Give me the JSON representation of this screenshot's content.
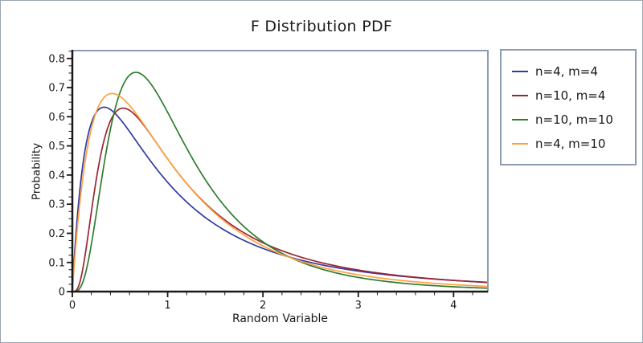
{
  "title": "F Distribution PDF",
  "axes": {
    "x": {
      "label": "Random Variable",
      "min": 0,
      "max": 4.36,
      "major_ticks": [
        0,
        1,
        2,
        3,
        4
      ],
      "tick_labels": [
        "0",
        "1",
        "2",
        "3",
        "4"
      ],
      "minor_step": 0.2
    },
    "y": {
      "label": "Probability",
      "min": 0,
      "max": 0.827,
      "major_ticks": [
        0,
        0.1,
        0.2,
        0.3,
        0.4,
        0.5,
        0.6,
        0.7,
        0.8
      ],
      "tick_labels": [
        "0",
        "0.1",
        "0.2",
        "0.3",
        "0.4",
        "0.5",
        "0.6",
        "0.7",
        "0.8"
      ],
      "minor_step": 0.025
    }
  },
  "legend": {
    "items": [
      {
        "label": "n=4, m=4",
        "color": "#3239A2"
      },
      {
        "label": "n=10, m=4",
        "color": "#9A2533"
      },
      {
        "label": "n=10, m=10",
        "color": "#2E7D2E"
      },
      {
        "label": "n=4, m=10",
        "color": "#FFA23F"
      }
    ]
  },
  "chart_data": {
    "type": "line",
    "title": "F Distribution PDF",
    "xlabel": "Random Variable",
    "ylabel": "Probability",
    "xlim": [
      0,
      4.36
    ],
    "ylim": [
      0,
      0.827
    ],
    "grid": false,
    "legend_position": "outside-right",
    "x_minor_tick_step": 0.2,
    "y_minor_tick_step": 0.025,
    "sample_x": [
      0.1,
      0.2,
      0.33,
      0.5,
      0.67,
      1.0,
      1.5,
      2.0,
      2.5,
      3.0,
      3.5,
      4.0,
      4.36
    ],
    "series": [
      {
        "name": "n=4, m=4",
        "distribution": "F",
        "df1": 4,
        "df2": 4,
        "color": "#3239A2",
        "peak_x": 0.33,
        "peak_y": 0.633,
        "values": [
          0.41,
          0.579,
          0.633,
          0.593,
          0.518,
          0.375,
          0.23,
          0.148,
          0.1,
          0.07,
          0.051,
          0.038,
          0.032
        ]
      },
      {
        "name": "n=10, m=4",
        "distribution": "F",
        "df1": 10,
        "df2": 4,
        "color": "#9A2533",
        "peak_x": 0.53,
        "peak_y": 0.627,
        "values": [
          0.061,
          0.274,
          0.519,
          0.627,
          0.604,
          0.455,
          0.272,
          0.167,
          0.108,
          0.074,
          0.052,
          0.038,
          0.031
        ]
      },
      {
        "name": "n=10, m=10",
        "distribution": "F",
        "df1": 10,
        "df2": 10,
        "color": "#2E7D2E",
        "peak_x": 0.67,
        "peak_y": 0.752,
        "values": [
          0.024,
          0.163,
          0.438,
          0.683,
          0.752,
          0.615,
          0.334,
          0.171,
          0.089,
          0.049,
          0.028,
          0.017,
          0.012
        ]
      },
      {
        "name": "n=4, m=10",
        "distribution": "F",
        "df1": 4,
        "df2": 10,
        "color": "#FFA23F",
        "peak_x": 0.42,
        "peak_y": 0.678,
        "values": [
          0.364,
          0.559,
          0.665,
          0.67,
          0.61,
          0.455,
          0.268,
          0.157,
          0.094,
          0.058,
          0.037,
          0.024,
          0.018
        ]
      }
    ]
  },
  "colors": {
    "axis": "#1A1A1A",
    "box_border": "#8C9CB1",
    "outer_border": "#9AA5B1",
    "text": "#1A1A1A",
    "background": "#FFFFFF"
  }
}
